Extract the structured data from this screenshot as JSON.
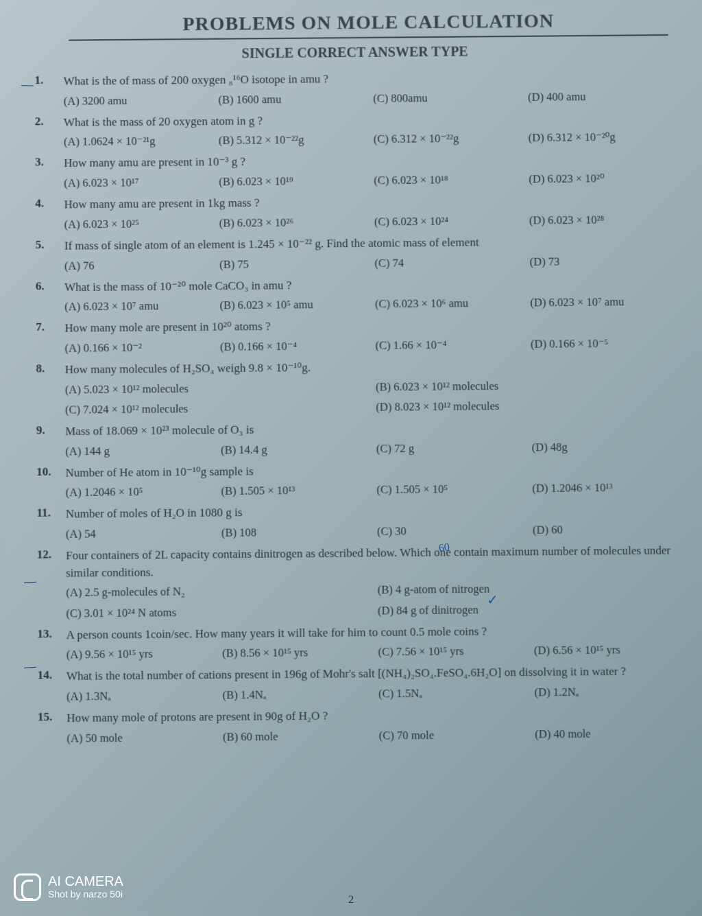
{
  "main_title": "PROBLEMS ON MOLE CALCULATION",
  "sub_title": "SINGLE CORRECT ANSWER TYPE",
  "questions": [
    {
      "num": "1.",
      "text": "What is the of mass of 200 oxygen ₈¹⁶O isotope in amu ?",
      "opts": [
        "(A) 3200 amu",
        "(B) 1600 amu",
        "(C) 800amu",
        "(D) 400 amu"
      ],
      "layout": 4
    },
    {
      "num": "2.",
      "text": "What is the mass of 20 oxygen atom in g ?",
      "opts": [
        "(A) 1.0624 × 10⁻²¹g",
        "(B) 5.312 × 10⁻²²g",
        "(C) 6.312 × 10⁻²²g",
        "(D) 6.312 × 10⁻²⁰g"
      ],
      "layout": 4
    },
    {
      "num": "3.",
      "text": "How many amu are present in 10⁻³ g ?",
      "opts": [
        "(A) 6.023 × 10¹⁷",
        "(B) 6.023 × 10¹⁹",
        "(C) 6.023 × 10¹⁸",
        "(D) 6.023 × 10²⁰"
      ],
      "layout": 4
    },
    {
      "num": "4.",
      "text": "How many amu are present in 1kg mass ?",
      "opts": [
        "(A) 6.023 × 10²⁵",
        "(B) 6.023 × 10²⁶",
        "(C) 6.023 × 10²⁴",
        "(D) 6.023 × 10²⁸"
      ],
      "layout": 4
    },
    {
      "num": "5.",
      "text": "If mass of single atom of an element is 1.245 × 10⁻²² g. Find the atomic mass of element",
      "opts": [
        "(A) 76",
        "(B) 75",
        "(C) 74",
        "(D) 73"
      ],
      "layout": 4
    },
    {
      "num": "6.",
      "text": "What is the mass of 10⁻²⁰ mole CaCO₃ in amu ?",
      "opts": [
        "(A) 6.023 × 10⁷ amu",
        "(B) 6.023 × 10⁵ amu",
        "(C) 6.023 × 10⁶ amu",
        "(D) 6.023 × 10⁷ amu"
      ],
      "layout": 4
    },
    {
      "num": "7.",
      "text": "How many mole are present in 10²⁰ atoms ?",
      "opts": [
        "(A) 0.166 × 10⁻²",
        "(B) 0.166 × 10⁻⁴",
        "(C) 1.66 × 10⁻⁴",
        "(D) 0.166 × 10⁻⁵"
      ],
      "layout": 4
    },
    {
      "num": "8.",
      "text": "How many molecules of H₂SO₄ weigh 9.8 × 10⁻¹⁰g.",
      "opts": [
        "(A) 5.023 × 10¹² molecules",
        "(B) 6.023 × 10¹² molecules",
        "(C) 7.024 × 10¹² molecules",
        "(D) 8.023 × 10¹² molecules"
      ],
      "layout": 2
    },
    {
      "num": "9.",
      "text": "Mass of 18.069 × 10²³ molecule of O₃ is",
      "opts": [
        "(A) 144 g",
        "(B) 14.4 g",
        "(C) 72 g",
        "(D) 48g"
      ],
      "layout": 4
    },
    {
      "num": "10.",
      "text": "Number of He atom in 10⁻¹⁰g sample is",
      "opts": [
        "(A) 1.2046 × 10⁵",
        "(B) 1.505 × 10¹³",
        "(C) 1.505 × 10⁵",
        "(D) 1.2046 × 10¹³"
      ],
      "layout": 4
    },
    {
      "num": "11.",
      "text": "Number of moles of H₂O in 1080 g is",
      "opts": [
        "(A) 54",
        "(B) 108",
        "(C) 30",
        "(D) 60"
      ],
      "layout": 4
    },
    {
      "num": "12.",
      "text": "Four containers of 2L capacity contains dinitrogen as described below. Which one contain maximum number of molecules under similar conditions.",
      "opts": [
        "(A) 2.5 g-molecules of N₂",
        "(B) 4 g-atom of nitrogen",
        "(C) 3.01 × 10²⁴ N atoms",
        "(D) 84 g of dinitrogen"
      ],
      "layout": 2
    },
    {
      "num": "13.",
      "text": "A person counts 1coin/sec. How many years it will take for him to count 0.5 mole coins ?",
      "opts": [
        "(A) 9.56 × 10¹⁵ yrs",
        "(B) 8.56 × 10¹⁵ yrs",
        "(C) 7.56 × 10¹⁵ yrs",
        "(D) 6.56 × 10¹⁵ yrs"
      ],
      "layout": 4
    },
    {
      "num": "14.",
      "text": "What is the total number of cations present in 196g of Mohr's salt [(NH₄)₂SO₄.FeSO₄.6H₂O] on dissolving it in water ?",
      "opts": [
        "(A) 1.3Nₐ",
        "(B) 1.4Nₐ",
        "(C) 1.5Nₐ",
        "(D) 1.2Nₐ"
      ],
      "layout": 4
    },
    {
      "num": "15.",
      "text": "How many mole of protons are present in 90g of H₂O ?",
      "opts": [
        "(A) 50 mole",
        "(B) 60 mole",
        "(C) 70 mole",
        "(D) 40 mole"
      ],
      "layout": 4
    }
  ],
  "camera": {
    "line1": "AI CAMERA",
    "line2": "Shot by narzo 50i"
  },
  "page_num": "2"
}
